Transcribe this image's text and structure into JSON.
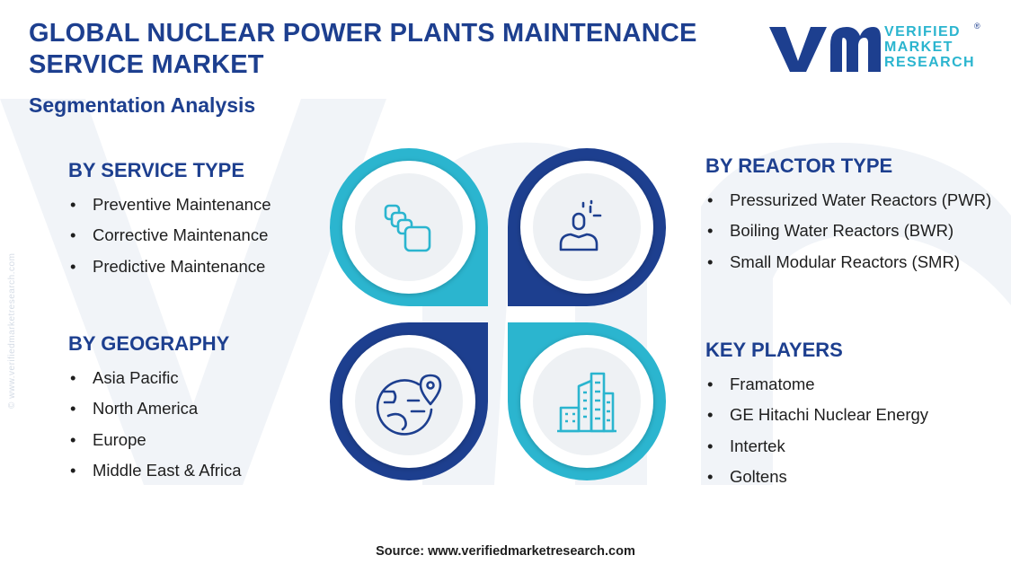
{
  "header": {
    "title": "GLOBAL NUCLEAR POWER PLANTS MAINTENANCE SERVICE MARKET",
    "subtitle": "Segmentation Analysis"
  },
  "logo": {
    "line1": "VERIFIED",
    "line2": "MARKET",
    "line3": "RESEARCH",
    "registered": "®",
    "colors": {
      "dark": "#1d3f8f",
      "light": "#2bb5cf"
    }
  },
  "watermark": {
    "side_text": "© www.verifiedmarketresearch.com"
  },
  "segments": {
    "service_type": {
      "heading": "BY SERVICE TYPE",
      "icon": "stacked-squares-icon",
      "items": [
        "Preventive Maintenance",
        "Corrective Maintenance",
        "Predictive Maintenance"
      ]
    },
    "reactor_type": {
      "heading": "BY REACTOR TYPE",
      "icon": "person-idea-icon",
      "items": [
        "Pressurized Water Reactors (PWR)",
        "Boiling Water Reactors (BWR)",
        "Small Modular Reactors (SMR)"
      ]
    },
    "geography": {
      "heading": "BY GEOGRAPHY",
      "icon": "globe-pin-icon",
      "items": [
        "Asia Pacific",
        "North America",
        "Europe",
        "Middle East & Africa"
      ]
    },
    "key_players": {
      "heading": "KEY PLAYERS",
      "icon": "city-buildings-icon",
      "items": [
        "Framatome",
        "GE Hitachi Nuclear Energy",
        "Intertek",
        "Goltens"
      ]
    }
  },
  "footer": {
    "source": "Source: www.verifiedmarketresearch.com"
  },
  "colors": {
    "navy": "#1d3f8f",
    "cyan": "#2bb5cf",
    "text": "#1e1e1e"
  }
}
